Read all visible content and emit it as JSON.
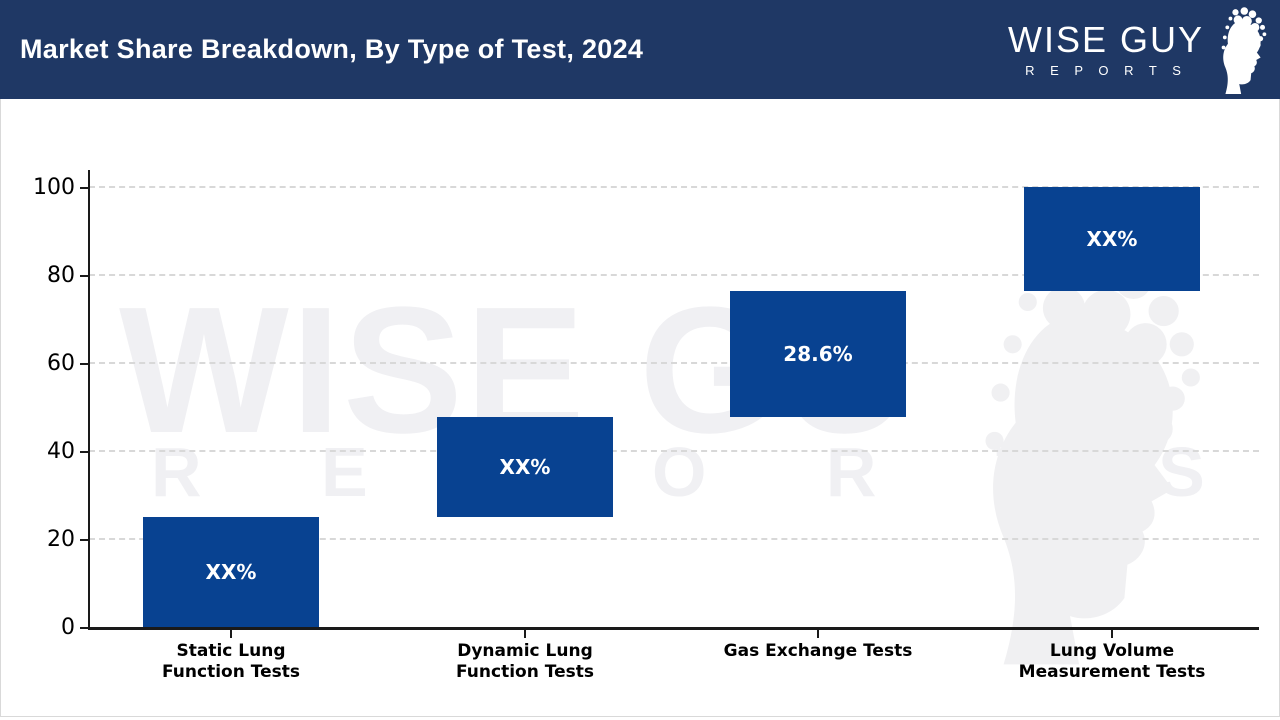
{
  "header": {
    "title": "Market Share Breakdown, By Type of Test, 2024",
    "logo": {
      "brand": "WISE GUY",
      "sub": "R E P O R T S"
    }
  },
  "watermark": {
    "brand": "WISE GU",
    "sub": "R E P O R T S"
  },
  "colors": {
    "header_bg": "#1f3865",
    "bar_fill": "#084291",
    "bar_label": "#ffffff",
    "gridline": "#d8d8d8",
    "axis": "#1a1a1a",
    "tick_text": "#000000",
    "watermark": "#f0f0f3",
    "border": "#d9d9d9"
  },
  "chart_data": {
    "type": "bar",
    "subtype": "floating-segment-breakdown",
    "title": "Market Share Breakdown, By Type of Test, 2024",
    "unit": "%",
    "categories": [
      "Static Lung Function Tests",
      "Dynamic Lung Function Tests",
      "Gas Exchange Tests",
      "Lung Volume Measurement Tests"
    ],
    "category_lines": [
      [
        "Static Lung",
        "Function Tests"
      ],
      [
        "Dynamic Lung",
        "Function Tests"
      ],
      [
        "Gas Exchange Tests"
      ],
      [
        "Lung Volume",
        "Measurement Tests"
      ]
    ],
    "segments": [
      {
        "category": "Static Lung Function Tests",
        "start": 0,
        "end": 25,
        "label": "XX%"
      },
      {
        "category": "Dynamic Lung Function Tests",
        "start": 25,
        "end": 47.7,
        "label": "XX%"
      },
      {
        "category": "Gas Exchange Tests",
        "start": 47.7,
        "end": 76.3,
        "label": "28.6%"
      },
      {
        "category": "Lung Volume Measurement Tests",
        "start": 76.3,
        "end": 100,
        "label": "XX%"
      }
    ],
    "yticks": [
      0,
      20,
      40,
      60,
      80,
      100
    ],
    "ylim": [
      0,
      105
    ],
    "grid": "horizontal-dashed",
    "legend": null
  }
}
